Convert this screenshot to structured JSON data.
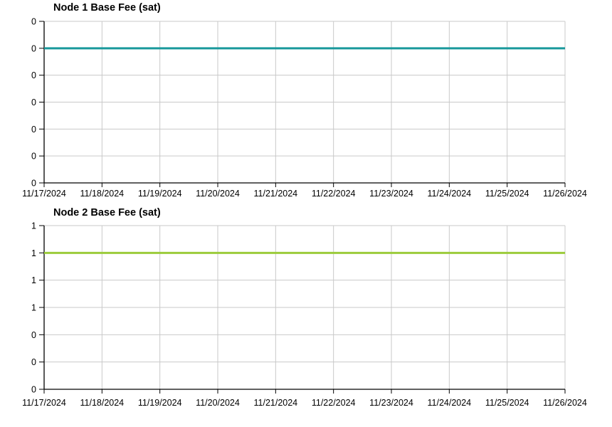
{
  "page": {
    "background_color": "#ffffff",
    "text_color": "#000000",
    "grid_color": "#c9c9c9",
    "axis_color": "#000000"
  },
  "chart_data": [
    {
      "type": "line",
      "title": "Node 1 Base Fee (sat)",
      "x": [
        "11/17/2024",
        "11/18/2024",
        "11/19/2024",
        "11/20/2024",
        "11/21/2024",
        "11/22/2024",
        "11/23/2024",
        "11/24/2024",
        "11/25/2024",
        "11/26/2024"
      ],
      "series": [
        {
          "name": "Node 1 Base Fee",
          "values": [
            0,
            0,
            0,
            0,
            0,
            0,
            0,
            0,
            0,
            0
          ],
          "color": "#1A999C"
        }
      ],
      "y_tick_labels_top_to_bottom": [
        "0",
        "0",
        "0",
        "0",
        "0",
        "0",
        "0"
      ],
      "line_y_tick_index_from_top": 1,
      "xlabel": "",
      "ylabel": "",
      "grid": true,
      "legend": "none"
    },
    {
      "type": "line",
      "title": "Node 2 Base Fee (sat)",
      "x": [
        "11/17/2024",
        "11/18/2024",
        "11/19/2024",
        "11/20/2024",
        "11/21/2024",
        "11/22/2024",
        "11/23/2024",
        "11/24/2024",
        "11/25/2024",
        "11/26/2024"
      ],
      "series": [
        {
          "name": "Node 2 Base Fee",
          "values": [
            1,
            1,
            1,
            1,
            1,
            1,
            1,
            1,
            1,
            1
          ],
          "color": "#9CCB3B"
        }
      ],
      "y_tick_labels_top_to_bottom": [
        "1",
        "1",
        "1",
        "1",
        "0",
        "0",
        "0"
      ],
      "line_y_tick_index_from_top": 1,
      "xlabel": "",
      "ylabel": "",
      "grid": true,
      "legend": "none"
    }
  ]
}
